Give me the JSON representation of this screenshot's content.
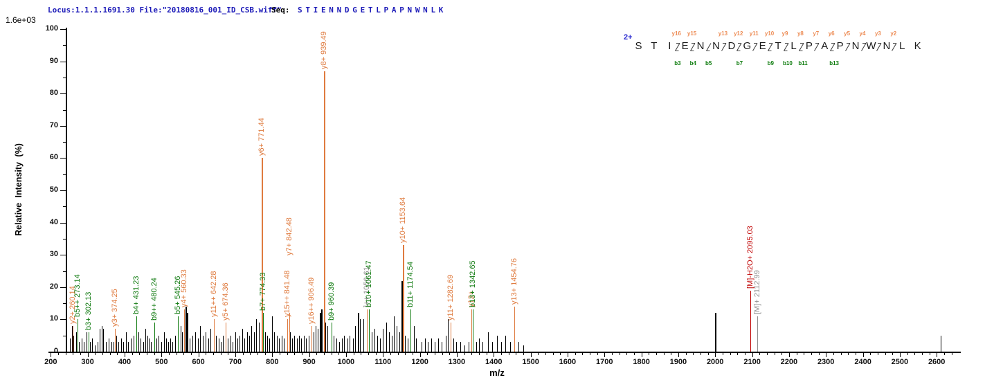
{
  "header": {
    "locus_file": "Locus:1.1.1.1691.30 File:\"20180816_001_ID_CSB.wiff\"",
    "seq_label": "Seq:",
    "seq_value": "STIENNDGETLPAPNWNLK"
  },
  "colors": {
    "header_blue": "#1c1ab8",
    "ion_types": {
      "y": "#df7b3f",
      "b": "#0f7a0f",
      "precursor": "#c00000",
      "neutral": "#8f8f8f"
    },
    "seq_y_label": "#ed8c55",
    "seq_b_label": "#0e7c0e",
    "unassigned_peak": "#000000"
  },
  "peptide": {
    "charge": "2+",
    "residues": [
      "S",
      "T",
      "I",
      "E",
      "N",
      "N",
      "D",
      "G",
      "E",
      "T",
      "L",
      "P",
      "A",
      "P",
      "N",
      "W",
      "N",
      "L",
      "K"
    ],
    "y_ions": [
      {
        "gap": 3,
        "label": "y16"
      },
      {
        "gap": 4,
        "label": "y15"
      },
      {
        "gap": 6,
        "label": "y13"
      },
      {
        "gap": 7,
        "label": "y12"
      },
      {
        "gap": 8,
        "label": "y11"
      },
      {
        "gap": 9,
        "label": "y10"
      },
      {
        "gap": 10,
        "label": "y9"
      },
      {
        "gap": 11,
        "label": "y8"
      },
      {
        "gap": 12,
        "label": "y7"
      },
      {
        "gap": 13,
        "label": "y6"
      },
      {
        "gap": 14,
        "label": "y5"
      },
      {
        "gap": 15,
        "label": "y4"
      },
      {
        "gap": 16,
        "label": "y3"
      },
      {
        "gap": 17,
        "label": "y2"
      }
    ],
    "b_ions": [
      {
        "gap": 3,
        "label": "b3"
      },
      {
        "gap": 4,
        "label": "b4"
      },
      {
        "gap": 5,
        "label": "b5"
      },
      {
        "gap": 7,
        "label": "b7"
      },
      {
        "gap": 9,
        "label": "b9"
      },
      {
        "gap": 10,
        "label": "b10"
      },
      {
        "gap": 11,
        "label": "b11"
      },
      {
        "gap": 13,
        "label": "b13"
      }
    ]
  },
  "chart_data": {
    "type": "bar",
    "subtype": "ms2-spectrum",
    "title": "",
    "xlabel": "m/z",
    "ylabel": "Relative Intensity (%)",
    "y_scale_note": "1.6e+03",
    "xlim": [
      200,
      2640
    ],
    "ylim": [
      0,
      100
    ],
    "x_tick_major": 100,
    "x_tick_minor": 20,
    "y_tick_major": 10,
    "y_tick_minor": 5,
    "grid": false,
    "legend": "none",
    "labeled_peaks": [
      {
        "ion": "y2+",
        "mz": "260.14",
        "type": "y",
        "intensity": 8
      },
      {
        "ion": "b5++",
        "mz": "273.14",
        "type": "b",
        "intensity": 10
      },
      {
        "ion": "b3+",
        "mz": "302.13",
        "type": "b",
        "intensity": 6
      },
      {
        "ion": "y3+",
        "mz": "374.25",
        "type": "y",
        "intensity": 7
      },
      {
        "ion": "b4+",
        "mz": "431.23",
        "type": "b",
        "intensity": 11
      },
      {
        "ion": "b9++",
        "mz": "480.24",
        "type": "b",
        "intensity": 9
      },
      {
        "ion": "b5+",
        "mz": "545.26",
        "type": "b",
        "intensity": 11
      },
      {
        "ion": "y4+",
        "mz": "560.33",
        "type": "y",
        "intensity": 13
      },
      {
        "ion": "y11++",
        "mz": "642.28",
        "type": "y",
        "intensity": 10
      },
      {
        "ion": "y5+",
        "mz": "674.36",
        "type": "y",
        "intensity": 9
      },
      {
        "ion": "y6+",
        "mz": "771.44",
        "type": "y",
        "intensity": 60
      },
      {
        "ion": "b7+",
        "mz": "774.33",
        "type": "b",
        "intensity": 12
      },
      {
        "ion": "y15++",
        "mz": "841.48",
        "type": "y",
        "intensity": 10
      },
      {
        "ion": "y7+",
        "mz": "842.48",
        "type": "y",
        "intensity": 12,
        "pos_mz": 845.5,
        "label_rise": 80
      },
      {
        "ion": "y16++",
        "mz": "906.49",
        "type": "y",
        "intensity": 8
      },
      {
        "ion": "y8+",
        "mz": "939.49",
        "type": "y",
        "intensity": 87
      },
      {
        "ion": "b9+",
        "mz": "960.39",
        "type": "b",
        "intensity": 9
      },
      {
        "ion": "]++",
        "mz": "1056.61",
        "type": "y",
        "label_color": "neutral",
        "intensity": 13
      },
      {
        "ion": "b10+",
        "mz": "1061.47",
        "type": "b",
        "intensity": 13
      },
      {
        "ion": "y10+",
        "mz": "1153.64",
        "type": "y",
        "intensity": 33
      },
      {
        "ion": "b11+",
        "mz": "1174.54",
        "type": "b",
        "intensity": 13
      },
      {
        "ion": "y11+",
        "mz": "1282.69",
        "type": "y",
        "intensity": 9
      },
      {
        "ion": "y12+",
        "mz": "",
        "display": "y12+",
        "type": "y",
        "intensity": 13,
        "pos_mz": 1339.6
      },
      {
        "ion": "b13+",
        "mz": "1342.65",
        "type": "b",
        "intensity": 13
      },
      {
        "ion": "y13+",
        "mz": "1454.76",
        "type": "y",
        "intensity": 14
      },
      {
        "ion": "[M]-H2O+",
        "mz": "2095.03",
        "type": "precursor",
        "intensity": 19
      },
      {
        "ion": "[M]+",
        "mz": "2112.99",
        "type": "neutral",
        "intensity": 11
      }
    ],
    "unlabeled_peaks": [
      [
        252,
        4
      ],
      [
        257,
        8
      ],
      [
        262,
        5
      ],
      [
        268,
        6
      ],
      [
        276,
        3
      ],
      [
        283,
        4
      ],
      [
        290,
        3
      ],
      [
        297,
        6
      ],
      [
        306,
        3
      ],
      [
        312,
        4
      ],
      [
        320,
        2
      ],
      [
        327,
        3
      ],
      [
        333,
        7
      ],
      [
        338,
        8
      ],
      [
        342,
        7
      ],
      [
        350,
        3
      ],
      [
        357,
        4
      ],
      [
        364,
        3
      ],
      [
        370,
        3
      ],
      [
        377,
        5
      ],
      [
        383,
        3
      ],
      [
        390,
        4
      ],
      [
        397,
        3
      ],
      [
        403,
        6
      ],
      [
        410,
        3
      ],
      [
        417,
        4
      ],
      [
        424,
        5
      ],
      [
        438,
        6
      ],
      [
        444,
        4
      ],
      [
        450,
        3
      ],
      [
        456,
        7
      ],
      [
        461,
        5
      ],
      [
        466,
        4
      ],
      [
        472,
        3
      ],
      [
        486,
        4
      ],
      [
        492,
        5
      ],
      [
        499,
        3
      ],
      [
        506,
        6
      ],
      [
        512,
        4
      ],
      [
        518,
        3
      ],
      [
        524,
        4
      ],
      [
        530,
        3
      ],
      [
        536,
        5
      ],
      [
        551,
        8
      ],
      [
        556,
        6
      ],
      [
        565,
        14
      ],
      [
        569,
        12
      ],
      [
        577,
        4
      ],
      [
        583,
        5
      ],
      [
        591,
        6
      ],
      [
        598,
        4
      ],
      [
        605,
        8
      ],
      [
        612,
        5
      ],
      [
        619,
        6
      ],
      [
        627,
        4
      ],
      [
        633,
        7
      ],
      [
        648,
        5
      ],
      [
        655,
        4
      ],
      [
        661,
        3
      ],
      [
        667,
        5
      ],
      [
        680,
        4
      ],
      [
        687,
        5
      ],
      [
        693,
        3
      ],
      [
        700,
        6
      ],
      [
        706,
        4
      ],
      [
        712,
        5
      ],
      [
        719,
        7
      ],
      [
        725,
        4
      ],
      [
        731,
        6
      ],
      [
        738,
        5
      ],
      [
        744,
        8
      ],
      [
        751,
        6
      ],
      [
        757,
        10
      ],
      [
        763,
        9
      ],
      [
        780,
        6
      ],
      [
        786,
        5
      ],
      [
        792,
        4
      ],
      [
        799,
        11
      ],
      [
        805,
        6
      ],
      [
        812,
        5
      ],
      [
        818,
        4
      ],
      [
        825,
        5
      ],
      [
        832,
        4
      ],
      [
        848,
        6
      ],
      [
        853,
        4
      ],
      [
        860,
        5
      ],
      [
        866,
        4
      ],
      [
        872,
        5
      ],
      [
        878,
        4
      ],
      [
        885,
        5
      ],
      [
        892,
        4
      ],
      [
        898,
        5
      ],
      [
        912,
        6
      ],
      [
        918,
        8
      ],
      [
        924,
        7
      ],
      [
        929,
        12
      ],
      [
        933,
        13
      ],
      [
        944,
        9
      ],
      [
        949,
        8
      ],
      [
        967,
        5
      ],
      [
        974,
        4
      ],
      [
        981,
        3
      ],
      [
        988,
        4
      ],
      [
        995,
        5
      ],
      [
        1003,
        4
      ],
      [
        1010,
        5
      ],
      [
        1018,
        4
      ],
      [
        1025,
        8
      ],
      [
        1032,
        12
      ],
      [
        1038,
        10
      ],
      [
        1046,
        10
      ],
      [
        1070,
        6
      ],
      [
        1077,
        7
      ],
      [
        1084,
        5
      ],
      [
        1092,
        4
      ],
      [
        1100,
        7
      ],
      [
        1108,
        9
      ],
      [
        1116,
        6
      ],
      [
        1123,
        5
      ],
      [
        1130,
        11
      ],
      [
        1137,
        8
      ],
      [
        1144,
        6
      ],
      [
        1150,
        22
      ],
      [
        1160,
        5
      ],
      [
        1166,
        4
      ],
      [
        1183,
        8
      ],
      [
        1190,
        4
      ],
      [
        1204,
        3
      ],
      [
        1213,
        4
      ],
      [
        1222,
        3
      ],
      [
        1231,
        4
      ],
      [
        1240,
        3
      ],
      [
        1249,
        4
      ],
      [
        1258,
        3
      ],
      [
        1270,
        5
      ],
      [
        1276,
        10
      ],
      [
        1290,
        4
      ],
      [
        1298,
        3
      ],
      [
        1310,
        3
      ],
      [
        1321,
        2
      ],
      [
        1332,
        3
      ],
      [
        1352,
        3
      ],
      [
        1360,
        4
      ],
      [
        1370,
        3
      ],
      [
        1384,
        6
      ],
      [
        1395,
        3
      ],
      [
        1409,
        5
      ],
      [
        1420,
        3
      ],
      [
        1432,
        5
      ],
      [
        1444,
        3
      ],
      [
        1467,
        3
      ],
      [
        1480,
        2
      ],
      [
        2000,
        12
      ],
      [
        2610,
        5
      ]
    ]
  }
}
